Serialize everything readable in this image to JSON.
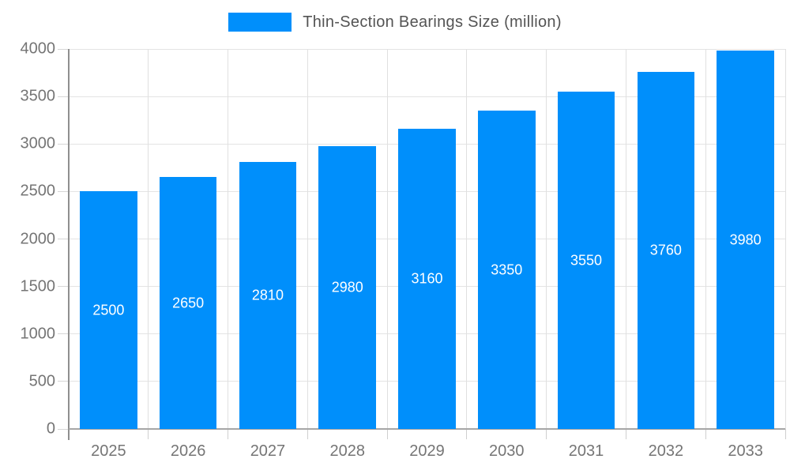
{
  "page": {
    "background": "#ffffff"
  },
  "legend": {
    "label": "Thin-Section Bearings Size (million)",
    "swatch_color": "#008FFB"
  },
  "chart_data": {
    "type": "bar",
    "title": "Thin-Section Bearings Size (million)",
    "categories": [
      "2025",
      "2026",
      "2027",
      "2028",
      "2029",
      "2030",
      "2031",
      "2032",
      "2033"
    ],
    "values": [
      2500,
      2650,
      2810,
      2980,
      3160,
      3350,
      3550,
      3760,
      3980
    ],
    "series": [
      {
        "name": "Thin-Section Bearings Size (million)",
        "values": [
          2500,
          2650,
          2810,
          2980,
          3160,
          3350,
          3550,
          3760,
          3980
        ]
      }
    ],
    "xlabel": "",
    "ylabel": "",
    "ylim": [
      0,
      4000
    ],
    "yticks": [
      0,
      500,
      1000,
      1500,
      2000,
      2500,
      3000,
      3500,
      4000
    ],
    "grid": true,
    "legend_position": "top-center",
    "bar_color": "#008FFB",
    "value_label_color": "#ffffff",
    "axis_label_color": "#757575",
    "value_labels_visible": true,
    "value_label_placement": "center-of-bar"
  }
}
